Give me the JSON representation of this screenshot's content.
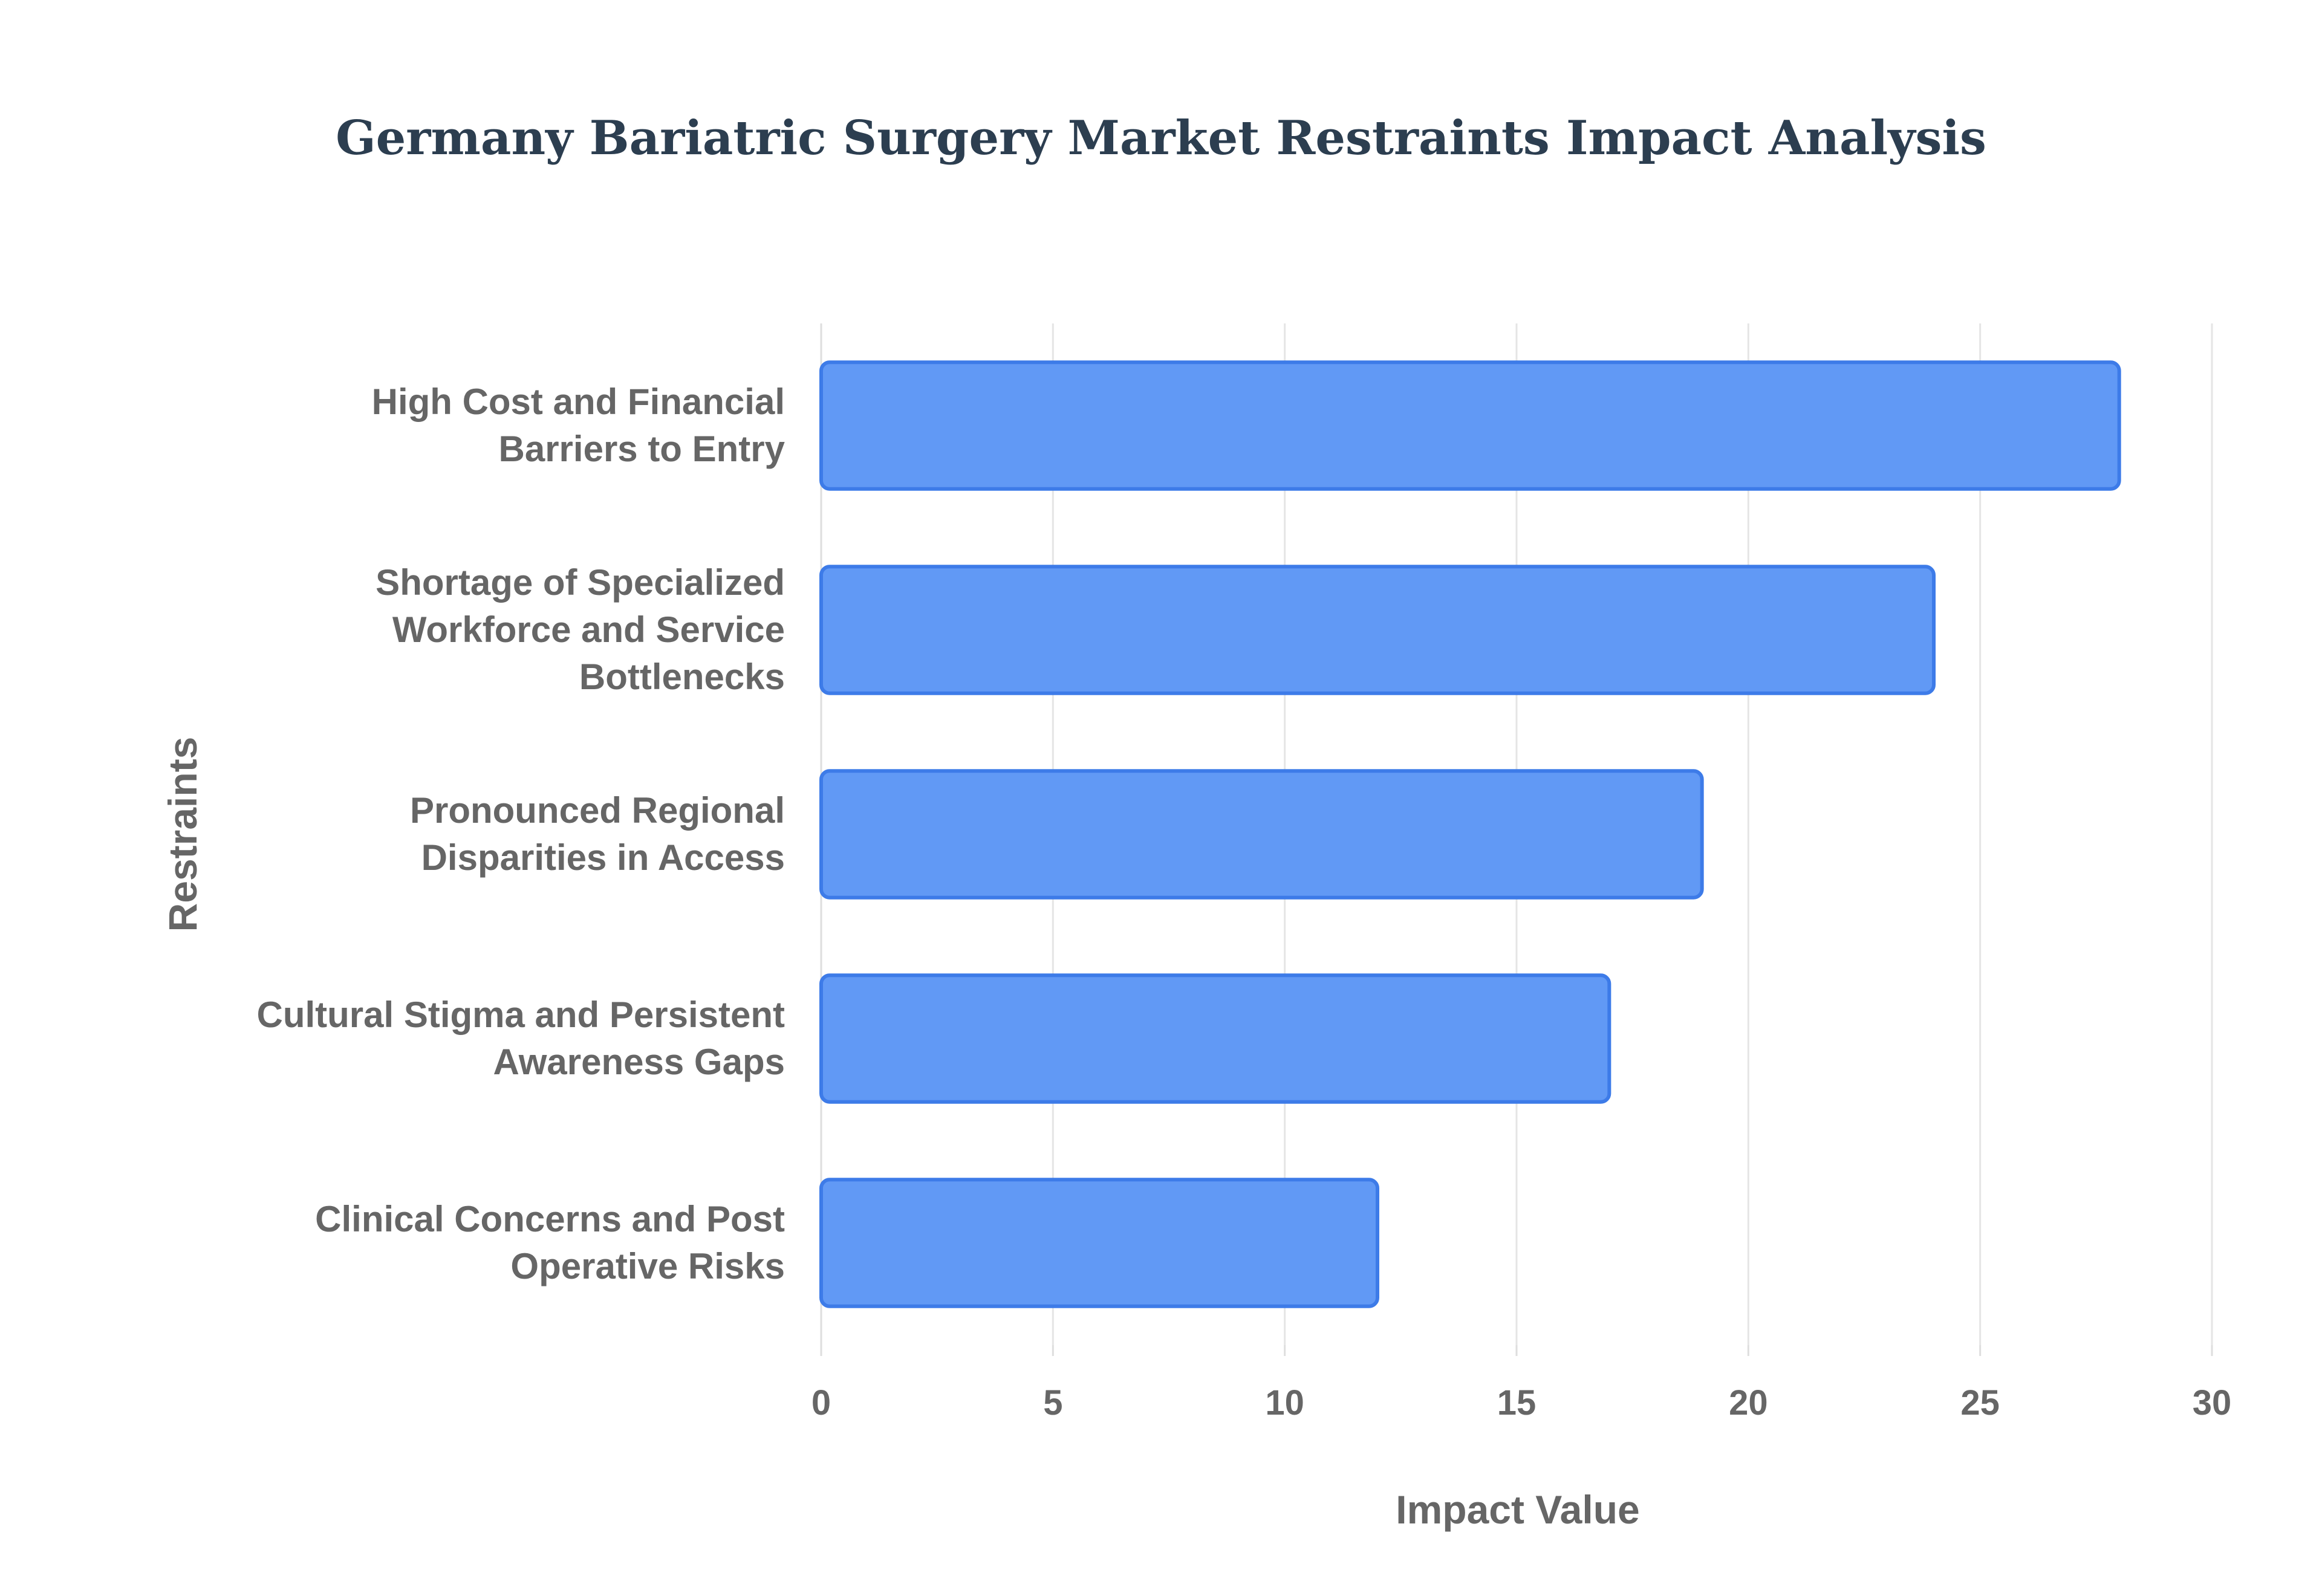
{
  "chart_data": {
    "type": "bar",
    "orientation": "horizontal",
    "title": "Germany Bariatric Surgery Market Restraints Impact Analysis",
    "xlabel": "Impact Value",
    "ylabel": "Restraints",
    "categories": [
      [
        "High Cost and Financial",
        "Barriers to Entry"
      ],
      [
        "Shortage of Specialized",
        "Workforce and Service",
        "Bottlenecks"
      ],
      [
        "Pronounced Regional",
        "Disparities in Access"
      ],
      [
        "Cultural Stigma and Persistent",
        "Awareness Gaps"
      ],
      [
        "Clinical Concerns and Post",
        "Operative Risks"
      ]
    ],
    "values": [
      28,
      24,
      19,
      17,
      12
    ],
    "xlim": [
      0,
      30
    ],
    "xticks": [
      "0",
      "5",
      "10",
      "15",
      "20",
      "25",
      "30"
    ],
    "grid": true,
    "legend": "none",
    "colors": {
      "bar_fill": "#6199f5",
      "bar_stroke": "#3d7be8"
    }
  }
}
